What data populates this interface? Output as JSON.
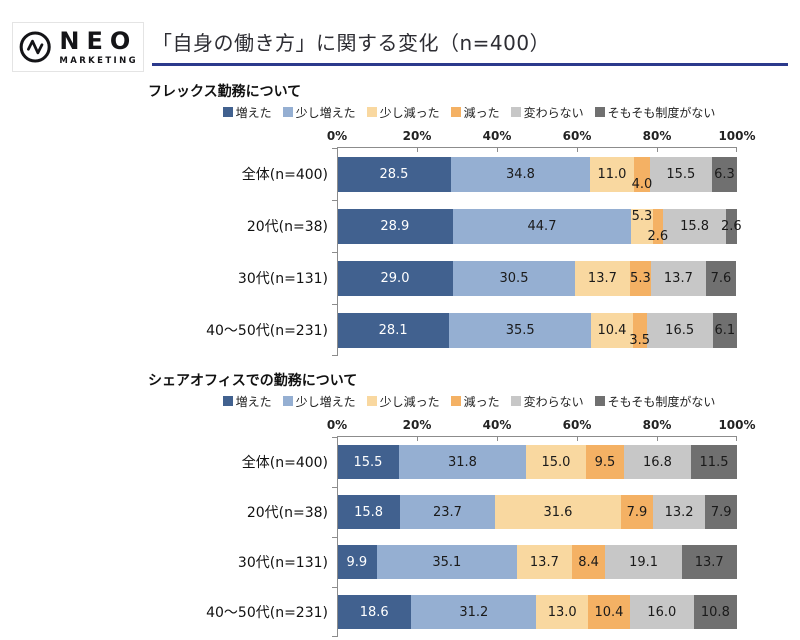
{
  "header": {
    "logo_main": "NEO",
    "logo_sub": "MARKETING",
    "title": "「自身の働き方」に関する変化（n=400）"
  },
  "colors": {
    "title_underline": "#2B3A8C",
    "axis_line": "#8C8C8C"
  },
  "chart_data": [
    {
      "type": "bar",
      "subtype": "horizontal_stacked",
      "title": "フレックス勤務について",
      "legend": [
        "増えた",
        "少し増えた",
        "少し減った",
        "減った",
        "変わらない",
        "そもそも制度がない"
      ],
      "segment_colors": [
        "#41618F",
        "#95AFD2",
        "#F9D8A0",
        "#F4B164",
        "#C7C7C7",
        "#707070"
      ],
      "value_text_colors": [
        "#FFFFFF",
        "#1A1A1A",
        "#1A1A1A",
        "#1A1A1A",
        "#1A1A1A",
        "#1A1A1A"
      ],
      "x_ticks": [
        "0%",
        "20%",
        "40%",
        "60%",
        "80%",
        "100%"
      ],
      "xlim": [
        0,
        100
      ],
      "categories": [
        "全体(n=400)",
        "20代(n=38)",
        "30代(n=131)",
        "40～50代(n=231)"
      ],
      "rows": [
        {
          "label": "全体(n=400)",
          "values": [
            28.5,
            34.8,
            11.0,
            4.0,
            15.5,
            6.3
          ],
          "label_offsets": [
            0,
            0,
            0,
            1,
            0,
            0
          ]
        },
        {
          "label": "20代(n=38)",
          "values": [
            28.9,
            44.7,
            5.3,
            2.6,
            15.8,
            2.6
          ],
          "label_offsets": [
            0,
            0,
            -1,
            1,
            0,
            0
          ]
        },
        {
          "label": "30代(n=131)",
          "values": [
            29.0,
            30.5,
            13.7,
            5.3,
            13.7,
            7.6
          ],
          "label_offsets": [
            0,
            0,
            0,
            0,
            0,
            0
          ]
        },
        {
          "label": "40～50代(n=231)",
          "values": [
            28.1,
            35.5,
            10.4,
            3.5,
            16.5,
            6.1
          ],
          "label_offsets": [
            0,
            0,
            0,
            1,
            0,
            0
          ]
        }
      ]
    },
    {
      "type": "bar",
      "subtype": "horizontal_stacked",
      "title": "シェアオフィスでの勤務について",
      "legend": [
        "増えた",
        "少し増えた",
        "少し減った",
        "減った",
        "変わらない",
        "そもそも制度がない"
      ],
      "segment_colors": [
        "#41618F",
        "#95AFD2",
        "#F9D8A0",
        "#F4B164",
        "#C7C7C7",
        "#707070"
      ],
      "value_text_colors": [
        "#FFFFFF",
        "#1A1A1A",
        "#1A1A1A",
        "#1A1A1A",
        "#1A1A1A",
        "#1A1A1A"
      ],
      "x_ticks": [
        "0%",
        "20%",
        "40%",
        "60%",
        "80%",
        "100%"
      ],
      "xlim": [
        0,
        100
      ],
      "categories": [
        "全体(n=400)",
        "20代(n=38)",
        "30代(n=131)",
        "40～50代(n=231)"
      ],
      "rows": [
        {
          "label": "全体(n=400)",
          "values": [
            15.5,
            31.8,
            15.0,
            9.5,
            16.8,
            11.5
          ],
          "label_offsets": [
            0,
            0,
            0,
            0,
            0,
            0
          ]
        },
        {
          "label": "20代(n=38)",
          "values": [
            15.8,
            23.7,
            31.6,
            7.9,
            13.2,
            7.9
          ],
          "label_offsets": [
            0,
            0,
            0,
            0,
            0,
            0
          ]
        },
        {
          "label": "30代(n=131)",
          "values": [
            9.9,
            35.1,
            13.7,
            8.4,
            19.1,
            13.7
          ],
          "label_offsets": [
            0,
            0,
            0,
            0,
            0,
            0
          ]
        },
        {
          "label": "40～50代(n=231)",
          "values": [
            18.6,
            31.2,
            13.0,
            10.4,
            16.0,
            10.8
          ],
          "label_offsets": [
            0,
            0,
            0,
            0,
            0,
            0
          ]
        }
      ]
    }
  ]
}
